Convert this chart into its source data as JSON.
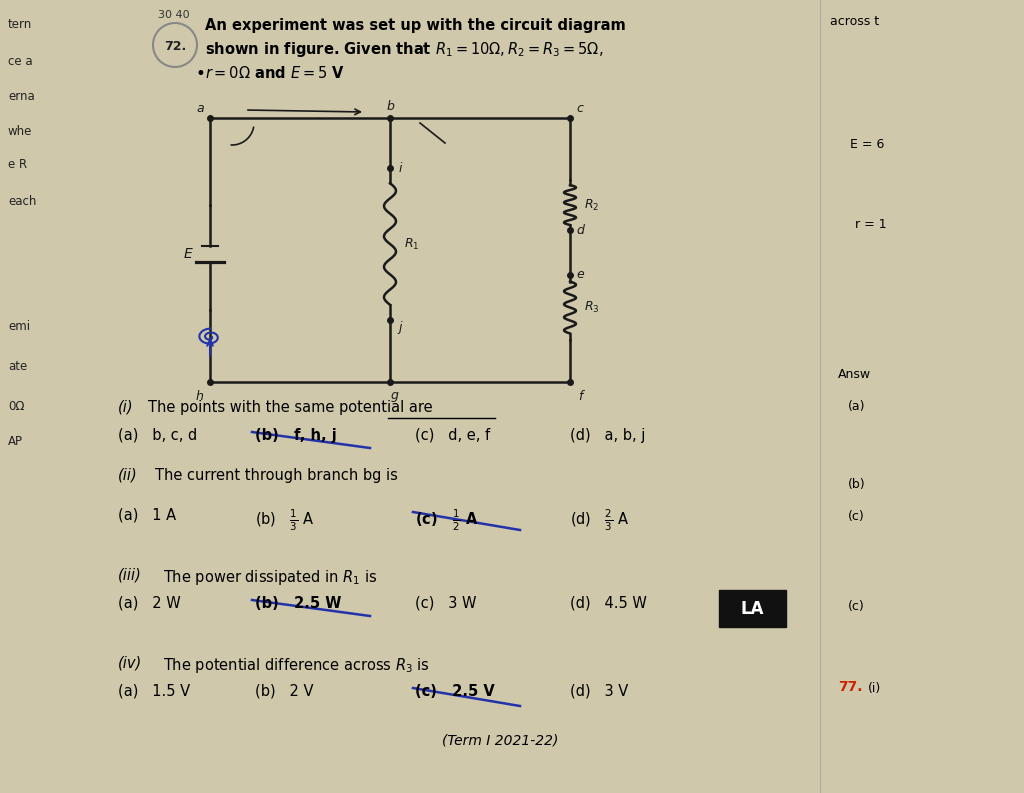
{
  "bg_color": "#cfc8ab",
  "wire_color": "#1a1a1a",
  "blue_color": "#2233aa",
  "title_line1": "An experiment was set up with the circuit diagram",
  "title_line2": "shown in figure. Given that $R_1=10\\Omega, R_2=R_3=5\\Omega,$",
  "title_line3": "$r=0\\Omega$ and $E=5$ V",
  "q_num": "72.",
  "left_margin": [
    "tern",
    "ce a",
    "erna",
    "whe",
    "e R",
    "each",
    "",
    "emi",
    "ate",
    "0Ω",
    "AP"
  ],
  "right_top": "across t",
  "right_E": "E = 6",
  "right_r": "r = 1",
  "right_answ": "Answ",
  "right_a": "(a)",
  "right_b": "(b)",
  "right_c1": "(c)",
  "right_c2": "(c)",
  "right_77": "77.",
  "right_i": "(i)",
  "footer": "(Term I 2021-22)",
  "q1_stem": "(i)   The points with the same potential are",
  "q1_opts": [
    "(a)   b, c, d",
    "(b)   f, h, j",
    "(c)   d, e, f",
    "(d)   a, b, j"
  ],
  "q1_ans": 1,
  "q2_stem": "(ii)   The current through branch bg is",
  "q2_opts": [
    "(a)   1 A",
    "(b)   $\\frac{1}{3}$ A",
    "(c)   $\\frac{1}{2}$ A",
    "(d)   $\\frac{2}{3}$ A"
  ],
  "q2_ans": 2,
  "q3_stem": "(iii)   The power dissipated in $R_1$ is",
  "q3_opts": [
    "(a)   2 W",
    "(b)   2.5 W",
    "(c)   3 W",
    "(d)   4.5 W"
  ],
  "q3_ans": 1,
  "q4_stem": "(iv)   The potential difference across $R_3$ is",
  "q4_opts": [
    "(a)   1.5 V",
    "(b)   2 V",
    "(c)   2.5 V",
    "(d)   3 V"
  ],
  "q4_ans": 2,
  "node_labels": {
    "a": "a",
    "b": "b",
    "c": "c",
    "h": "h",
    "g": "g",
    "f": "f",
    "i": "i",
    "j": "j",
    "d": "d",
    "e": "e"
  }
}
